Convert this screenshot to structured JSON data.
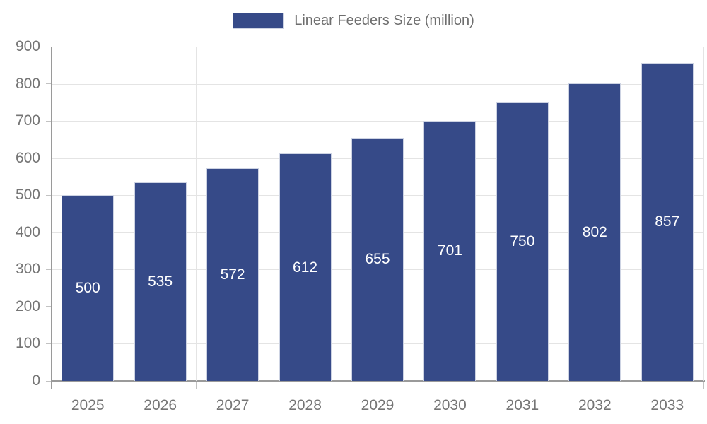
{
  "legend": {
    "label": "Linear Feeders Size (million)"
  },
  "chart_data": {
    "type": "bar",
    "title": "",
    "categories": [
      "2025",
      "2026",
      "2027",
      "2028",
      "2029",
      "2030",
      "2031",
      "2032",
      "2033"
    ],
    "series": [
      {
        "name": "Linear Feeders Size (million)",
        "values": [
          500,
          535,
          572,
          612,
          655,
          701,
          750,
          802,
          857
        ]
      }
    ],
    "xlabel": "",
    "ylabel": "",
    "ylim": [
      0,
      900
    ],
    "ytick_step": 100,
    "grid": "on",
    "legend_position": "top-center",
    "bar_value_labels": "inside-center"
  },
  "colors": {
    "background": "#FFFFFF",
    "bar": "#364A88",
    "bar_border": "#CDD3E3",
    "bar_label": "#FFFFFF",
    "axis": "#9A9A9A",
    "tick": "#C2C2C2",
    "grid": "#E4E4E4",
    "axis_label": "#757575",
    "legend_text": "#6E6E6E"
  }
}
